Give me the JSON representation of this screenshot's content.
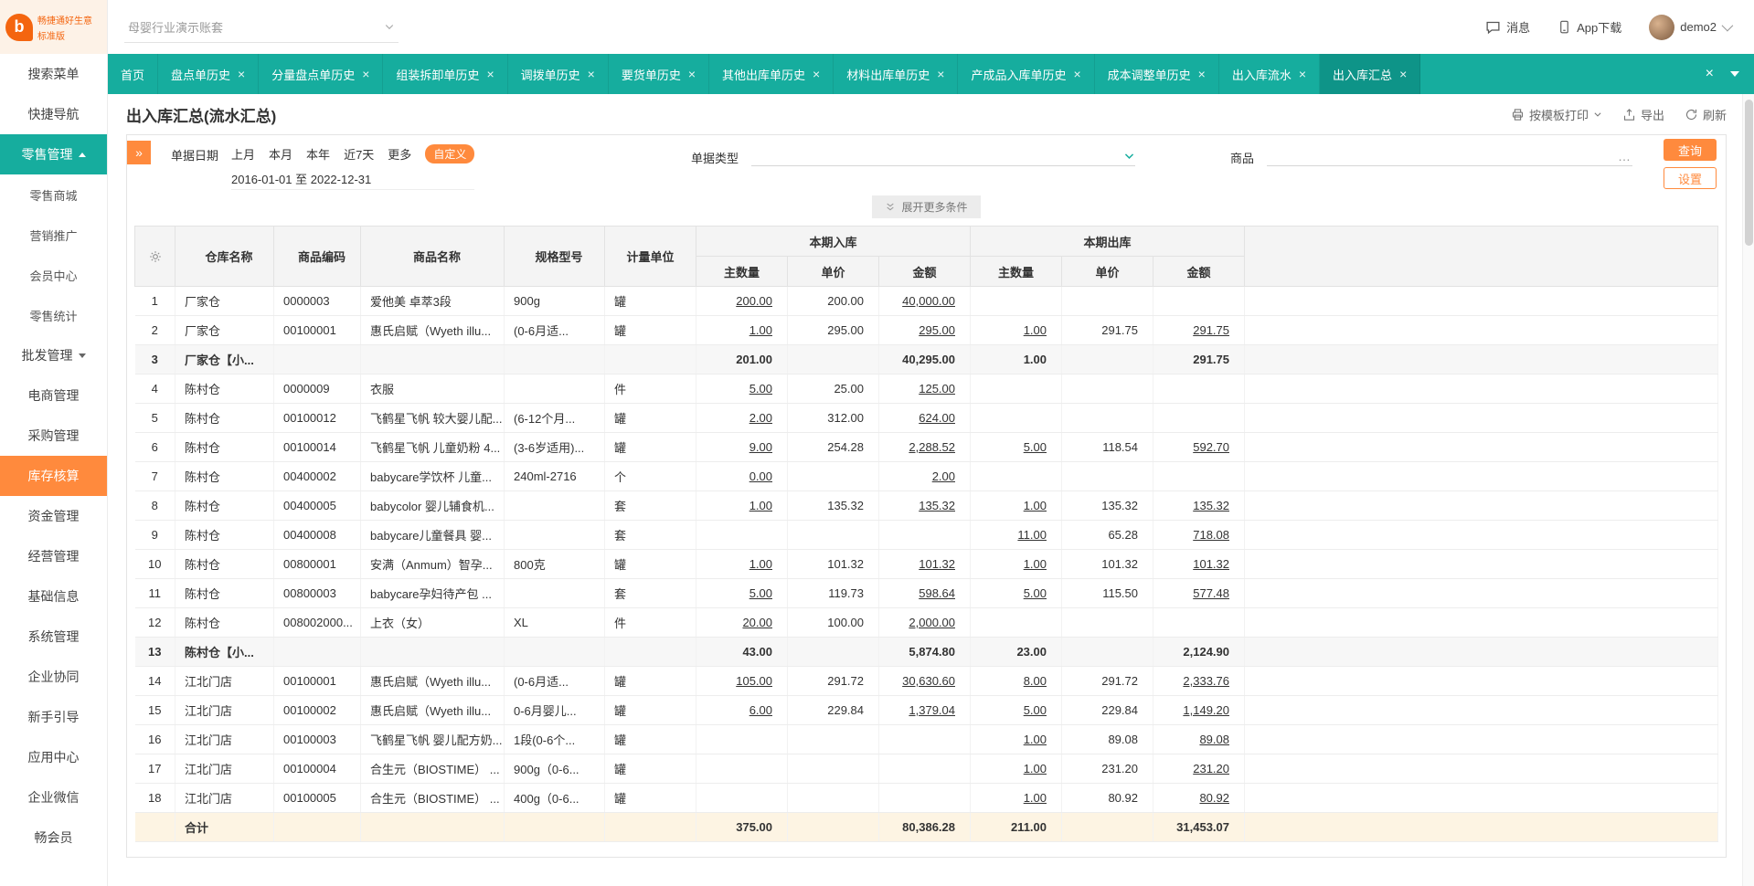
{
  "colors": {
    "teal": "#16ad9e",
    "teal_dark": "#0e9488",
    "orange": "#ff8a3d",
    "logo_orange": "#f4650f",
    "total_row_bg": "#fdf4e3"
  },
  "icons": {
    "expand_right": "»",
    "close": "×",
    "ellipsis": "…"
  },
  "topbar": {
    "logo_glyph": "b",
    "logo_title": "畅捷通好生意",
    "logo_subtitle": "标准版",
    "account_select": "母婴行业演示账套",
    "message": "消息",
    "app_download": "App下载",
    "username": "demo2"
  },
  "sidebar": {
    "items": [
      {
        "label": "搜索菜单",
        "type": "top"
      },
      {
        "label": "快捷导航",
        "type": "top"
      },
      {
        "label": "零售管理",
        "type": "group-teal",
        "arrow": "up"
      },
      {
        "label": "零售商城",
        "type": "sub"
      },
      {
        "label": "营销推广",
        "type": "sub"
      },
      {
        "label": "会员中心",
        "type": "sub"
      },
      {
        "label": "零售统计",
        "type": "sub"
      },
      {
        "label": "批发管理",
        "type": "group",
        "arrow": "down"
      },
      {
        "label": "电商管理",
        "type": "top"
      },
      {
        "label": "采购管理",
        "type": "top"
      },
      {
        "label": "库存核算",
        "type": "active-orange"
      },
      {
        "label": "资金管理",
        "type": "top"
      },
      {
        "label": "经营管理",
        "type": "top"
      },
      {
        "label": "基础信息",
        "type": "top"
      },
      {
        "label": "系统管理",
        "type": "top"
      },
      {
        "label": "企业协同",
        "type": "top"
      },
      {
        "label": "新手引导",
        "type": "top"
      },
      {
        "label": "应用中心",
        "type": "top"
      },
      {
        "label": "企业微信",
        "type": "top"
      },
      {
        "label": "畅会员",
        "type": "top"
      }
    ]
  },
  "tabs": [
    {
      "label": "首页",
      "closable": false,
      "active": false
    },
    {
      "label": "盘点单历史",
      "closable": true,
      "active": false
    },
    {
      "label": "分量盘点单历史",
      "closable": true,
      "active": false
    },
    {
      "label": "组装拆卸单历史",
      "closable": true,
      "active": false
    },
    {
      "label": "调拨单历史",
      "closable": true,
      "active": false
    },
    {
      "label": "要货单历史",
      "closable": true,
      "active": false
    },
    {
      "label": "其他出库单历史",
      "closable": true,
      "active": false
    },
    {
      "label": "材料出库单历史",
      "closable": true,
      "active": false
    },
    {
      "label": "产成品入库单历史",
      "closable": true,
      "active": false
    },
    {
      "label": "成本调整单历史",
      "closable": true,
      "active": false
    },
    {
      "label": "出入库流水",
      "closable": true,
      "active": false
    },
    {
      "label": "出入库汇总",
      "closable": true,
      "active": true
    }
  ],
  "page": {
    "title": "出入库汇总(流水汇总)",
    "actions": {
      "print": "按模板打印",
      "export": "导出",
      "refresh": "刷新"
    }
  },
  "filters": {
    "date_label": "单据日期",
    "date_options": [
      "上月",
      "本月",
      "本年",
      "近7天",
      "更多"
    ],
    "custom_badge": "自定义",
    "date_range": "2016-01-01 至 2022-12-31",
    "type_label": "单据类型",
    "product_label": "商品",
    "search_button": "查询",
    "settings_button": "设置",
    "expand_more": "展开更多条件"
  },
  "table": {
    "headers": {
      "warehouse": "仓库名称",
      "code": "商品编码",
      "name": "商品名称",
      "spec": "规格型号",
      "unit": "计量单位",
      "in_group": "本期入库",
      "out_group": "本期出库",
      "qty": "主数量",
      "price": "单价",
      "amount": "金额"
    },
    "rows": [
      {
        "seq": "1",
        "warehouse": "厂家仓",
        "code": "0000003",
        "name": "爱他美 卓萃3段",
        "spec": "900g",
        "unit": "罐",
        "in_qty": "200.00",
        "in_price": "200.00",
        "in_amount": "40,000.00",
        "out_qty": "",
        "out_price": "",
        "out_amount": "",
        "type": "normal"
      },
      {
        "seq": "2",
        "warehouse": "厂家仓",
        "code": "00100001",
        "name": "惠氏启赋（Wyeth illu...",
        "spec": "(0-6月适...",
        "unit": "罐",
        "in_qty": "1.00",
        "in_price": "295.00",
        "in_amount": "295.00",
        "out_qty": "1.00",
        "out_price": "291.75",
        "out_amount": "291.75",
        "type": "normal"
      },
      {
        "seq": "3",
        "warehouse": "厂家仓【小...",
        "code": "",
        "name": "",
        "spec": "",
        "unit": "",
        "in_qty": "201.00",
        "in_price": "",
        "in_amount": "40,295.00",
        "out_qty": "1.00",
        "out_price": "",
        "out_amount": "291.75",
        "type": "subtotal"
      },
      {
        "seq": "4",
        "warehouse": "陈村仓",
        "code": "0000009",
        "name": "衣服",
        "spec": "",
        "unit": "件",
        "in_qty": "5.00",
        "in_price": "25.00",
        "in_amount": "125.00",
        "out_qty": "",
        "out_price": "",
        "out_amount": "",
        "type": "normal"
      },
      {
        "seq": "5",
        "warehouse": "陈村仓",
        "code": "00100012",
        "name": "飞鹤星飞帆 较大婴儿配...",
        "spec": "(6-12个月...",
        "unit": "罐",
        "in_qty": "2.00",
        "in_price": "312.00",
        "in_amount": "624.00",
        "out_qty": "",
        "out_price": "",
        "out_amount": "",
        "type": "normal"
      },
      {
        "seq": "6",
        "warehouse": "陈村仓",
        "code": "00100014",
        "name": "飞鹤星飞帆 儿童奶粉 4...",
        "spec": "(3-6岁适用)...",
        "unit": "罐",
        "in_qty": "9.00",
        "in_price": "254.28",
        "in_amount": "2,288.52",
        "out_qty": "5.00",
        "out_price": "118.54",
        "out_amount": "592.70",
        "type": "normal"
      },
      {
        "seq": "7",
        "warehouse": "陈村仓",
        "code": "00400002",
        "name": "babycare学饮杯 儿童...",
        "spec": "240ml-2716",
        "unit": "个",
        "in_qty": "0.00",
        "in_price": "",
        "in_amount": "2.00",
        "out_qty": "",
        "out_price": "",
        "out_amount": "",
        "type": "normal"
      },
      {
        "seq": "8",
        "warehouse": "陈村仓",
        "code": "00400005",
        "name": "babycolor 婴儿辅食机...",
        "spec": "",
        "unit": "套",
        "in_qty": "1.00",
        "in_price": "135.32",
        "in_amount": "135.32",
        "out_qty": "1.00",
        "out_price": "135.32",
        "out_amount": "135.32",
        "type": "normal"
      },
      {
        "seq": "9",
        "warehouse": "陈村仓",
        "code": "00400008",
        "name": "babycare儿童餐具 婴...",
        "spec": "",
        "unit": "套",
        "in_qty": "",
        "in_price": "",
        "in_amount": "",
        "out_qty": "11.00",
        "out_price": "65.28",
        "out_amount": "718.08",
        "type": "normal"
      },
      {
        "seq": "10",
        "warehouse": "陈村仓",
        "code": "00800001",
        "name": "安满（Anmum）智孕...",
        "spec": "800克",
        "unit": "罐",
        "in_qty": "1.00",
        "in_price": "101.32",
        "in_amount": "101.32",
        "out_qty": "1.00",
        "out_price": "101.32",
        "out_amount": "101.32",
        "type": "normal"
      },
      {
        "seq": "11",
        "warehouse": "陈村仓",
        "code": "00800003",
        "name": "babycare孕妇待产包 ...",
        "spec": "",
        "unit": "套",
        "in_qty": "5.00",
        "in_price": "119.73",
        "in_amount": "598.64",
        "out_qty": "5.00",
        "out_price": "115.50",
        "out_amount": "577.48",
        "type": "normal"
      },
      {
        "seq": "12",
        "warehouse": "陈村仓",
        "code": "008002000...",
        "name": "上衣（女）",
        "spec": "XL",
        "unit": "件",
        "in_qty": "20.00",
        "in_price": "100.00",
        "in_amount": "2,000.00",
        "out_qty": "",
        "out_price": "",
        "out_amount": "",
        "type": "normal"
      },
      {
        "seq": "13",
        "warehouse": "陈村仓【小...",
        "code": "",
        "name": "",
        "spec": "",
        "unit": "",
        "in_qty": "43.00",
        "in_price": "",
        "in_amount": "5,874.80",
        "out_qty": "23.00",
        "out_price": "",
        "out_amount": "2,124.90",
        "type": "subtotal"
      },
      {
        "seq": "14",
        "warehouse": "江北门店",
        "code": "00100001",
        "name": "惠氏启赋（Wyeth illu...",
        "spec": "(0-6月适...",
        "unit": "罐",
        "in_qty": "105.00",
        "in_price": "291.72",
        "in_amount": "30,630.60",
        "out_qty": "8.00",
        "out_price": "291.72",
        "out_amount": "2,333.76",
        "type": "normal"
      },
      {
        "seq": "15",
        "warehouse": "江北门店",
        "code": "00100002",
        "name": "惠氏启赋（Wyeth illu...",
        "spec": "0-6月婴儿...",
        "unit": "罐",
        "in_qty": "6.00",
        "in_price": "229.84",
        "in_amount": "1,379.04",
        "out_qty": "5.00",
        "out_price": "229.84",
        "out_amount": "1,149.20",
        "type": "normal"
      },
      {
        "seq": "16",
        "warehouse": "江北门店",
        "code": "00100003",
        "name": "飞鹤星飞帆 婴儿配方奶...",
        "spec": "1段(0-6个...",
        "unit": "罐",
        "in_qty": "",
        "in_price": "",
        "in_amount": "",
        "out_qty": "1.00",
        "out_price": "89.08",
        "out_amount": "89.08",
        "type": "normal"
      },
      {
        "seq": "17",
        "warehouse": "江北门店",
        "code": "00100004",
        "name": "合生元（BIOSTIME） ...",
        "spec": "900g（0-6...",
        "unit": "罐",
        "in_qty": "",
        "in_price": "",
        "in_amount": "",
        "out_qty": "1.00",
        "out_price": "231.20",
        "out_amount": "231.20",
        "type": "normal"
      },
      {
        "seq": "18",
        "warehouse": "江北门店",
        "code": "00100005",
        "name": "合生元（BIOSTIME） ...",
        "spec": "400g（0-6...",
        "unit": "罐",
        "in_qty": "",
        "in_price": "",
        "in_amount": "",
        "out_qty": "1.00",
        "out_price": "80.92",
        "out_amount": "80.92",
        "type": "normal"
      },
      {
        "seq": "",
        "warehouse": "合计",
        "code": "",
        "name": "",
        "spec": "",
        "unit": "",
        "in_qty": "375.00",
        "in_price": "",
        "in_amount": "80,386.28",
        "out_qty": "211.00",
        "out_price": "",
        "out_amount": "31,453.07",
        "type": "total"
      }
    ]
  }
}
